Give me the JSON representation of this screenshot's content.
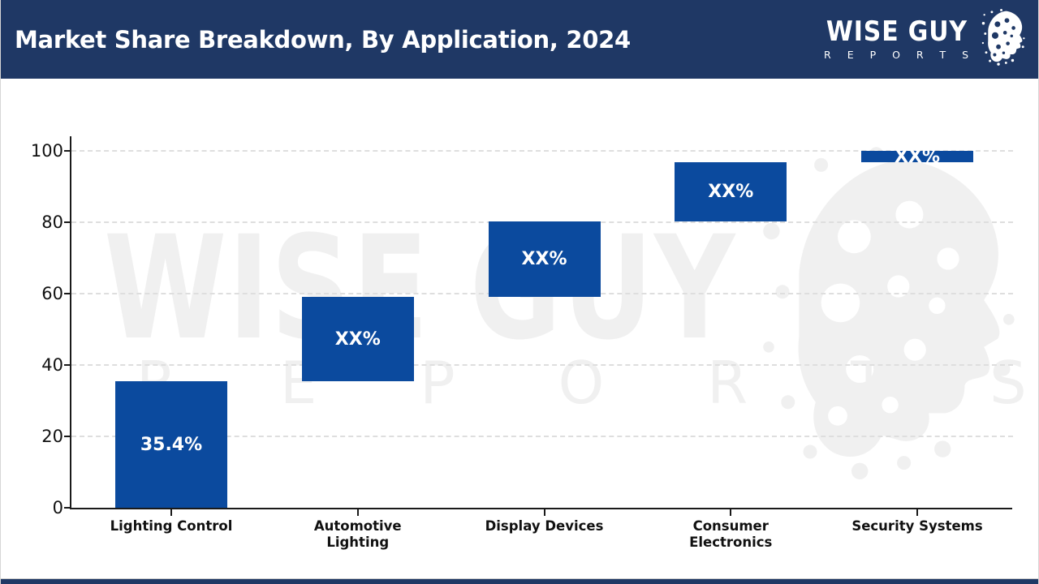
{
  "header": {
    "title": "Market Share Breakdown, By Application, 2024",
    "logo": {
      "line1": "WISE GUY",
      "line2": "R E P O R T S"
    }
  },
  "watermark": {
    "line1": "WISE GUY",
    "line2": "R E P O R T S"
  },
  "colors": {
    "header_bg": "#1F3865",
    "footer_bg": "#1F3865",
    "bar_fill": "#0B4A9E",
    "bar_label_text": "#FFFFFF",
    "gridline": "#DEDEDE",
    "axis": "#1A1A1A",
    "watermark": "#F0F0F0"
  },
  "chart_data": {
    "type": "bar",
    "subtype": "waterfall",
    "title": "Market Share Breakdown, By Application, 2024",
    "xlabel": "",
    "ylabel": "",
    "ylim": [
      0,
      105
    ],
    "y_ticks": [
      0,
      20,
      40,
      60,
      80,
      100
    ],
    "grid": "horizontal-dashed",
    "legend": null,
    "categories": [
      "Lighting Control",
      "Automotive Lighting",
      "Display Devices",
      "Consumer Electronics",
      "Security Systems"
    ],
    "category_label_lines": [
      [
        "Lighting Control"
      ],
      [
        "Automotive",
        "Lighting"
      ],
      [
        "Display Devices"
      ],
      [
        "Consumer",
        "Electronics"
      ],
      [
        "Security Systems"
      ]
    ],
    "segments": [
      {
        "category": "Lighting Control",
        "start": 0,
        "end": 35.4,
        "value": 35.4,
        "label": "35.4%"
      },
      {
        "category": "Automotive Lighting",
        "start": 35.4,
        "end": 59.0,
        "value": 23.6,
        "label": "XX%"
      },
      {
        "category": "Display Devices",
        "start": 59.0,
        "end": 80.2,
        "value": 21.2,
        "label": "XX%"
      },
      {
        "category": "Consumer Electronics",
        "start": 80.2,
        "end": 96.8,
        "value": 16.6,
        "label": "XX%"
      },
      {
        "category": "Security Systems",
        "start": 96.8,
        "end": 100.0,
        "value": 3.2,
        "label": "XX%"
      }
    ]
  }
}
